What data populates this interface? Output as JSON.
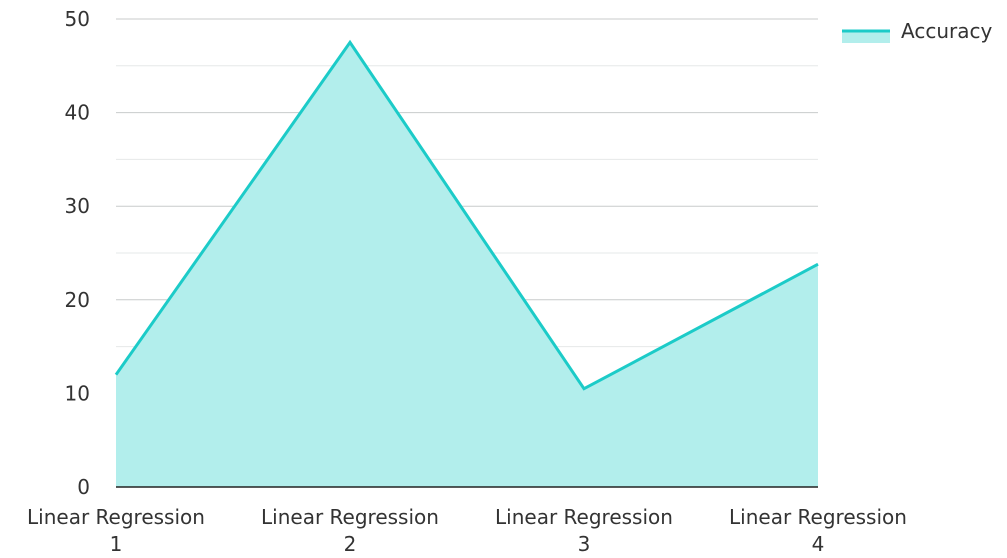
{
  "chart_data": {
    "type": "area",
    "categories": [
      "Linear Regression\n1",
      "Linear Regression\n2",
      "Linear Regression\n3",
      "Linear Regression\n4"
    ],
    "series": [
      {
        "name": "Accuracy",
        "values": [
          12,
          47.5,
          10.5,
          23.8
        ]
      }
    ],
    "yticks": [
      "0",
      "10",
      "20",
      "30",
      "40",
      "50"
    ],
    "ylim": [
      0,
      50
    ],
    "grid": true,
    "legend": "top-right",
    "colors": {
      "line": "#1ccbc8",
      "fill": "#b2eeec",
      "grid_major": "#c8cbcb",
      "grid_minor": "#e6e8e8",
      "axis": "#222222"
    }
  }
}
